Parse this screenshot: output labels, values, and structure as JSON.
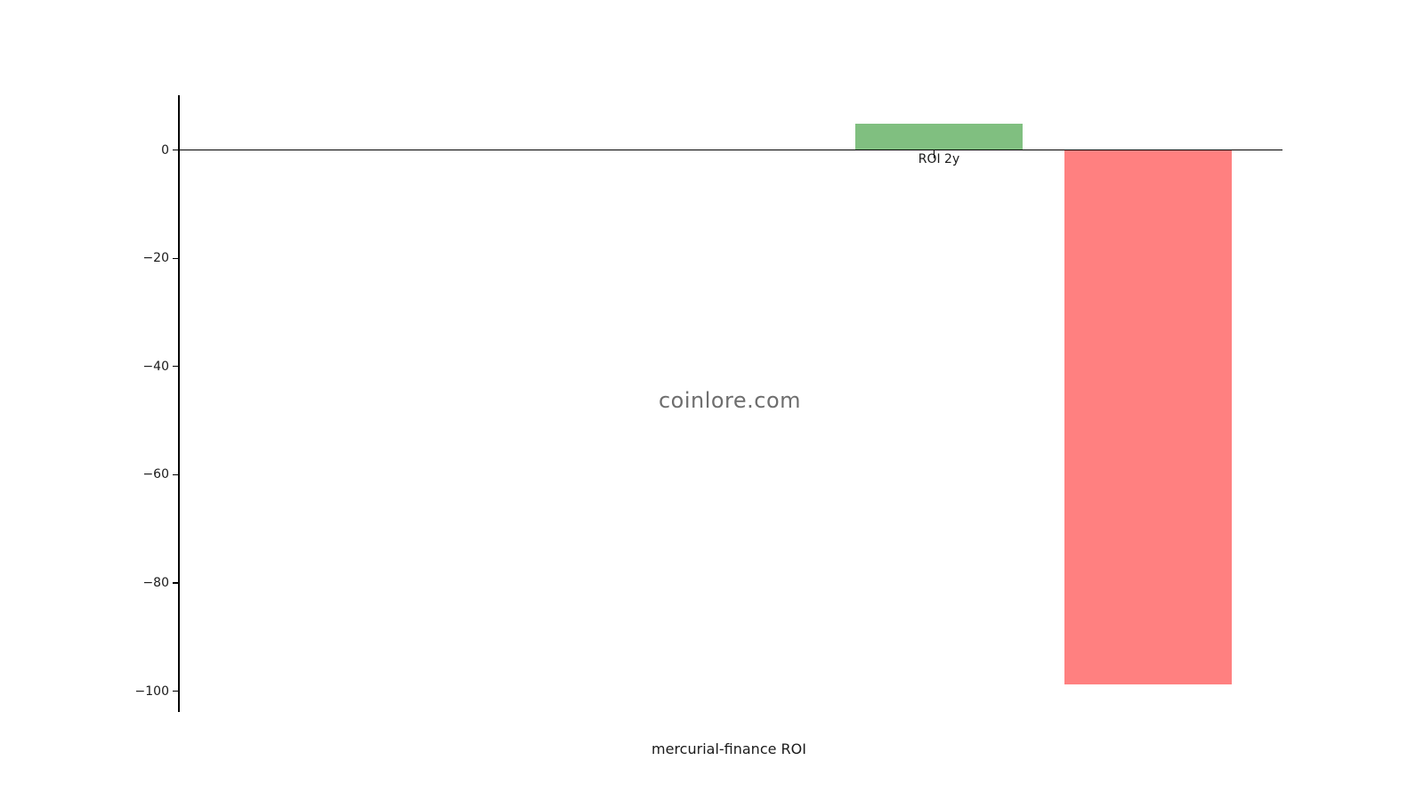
{
  "chart_data": {
    "type": "bar",
    "title": "",
    "xlabel": "mercurial-finance ROI",
    "ylabel": "",
    "categories": [
      "ROI 2y",
      ""
    ],
    "values": [
      4.8,
      -98.7
    ],
    "bar_colors": [
      "#80bf80",
      "#ff8080"
    ],
    "ytick_values": [
      0,
      -20,
      -40,
      -60,
      -80,
      -100
    ],
    "ytick_labels": [
      "0",
      "−20",
      "−40",
      "−60",
      "−80",
      "−100"
    ],
    "ylim": [
      10.2,
      -104
    ],
    "grid": false,
    "legend": "none",
    "background_color": "#ffffff",
    "axis_color": "#000000",
    "tick_label_color": "#1a1a1a",
    "watermark": {
      "text": "coinlore.com",
      "color": "#6e6e6e"
    }
  }
}
